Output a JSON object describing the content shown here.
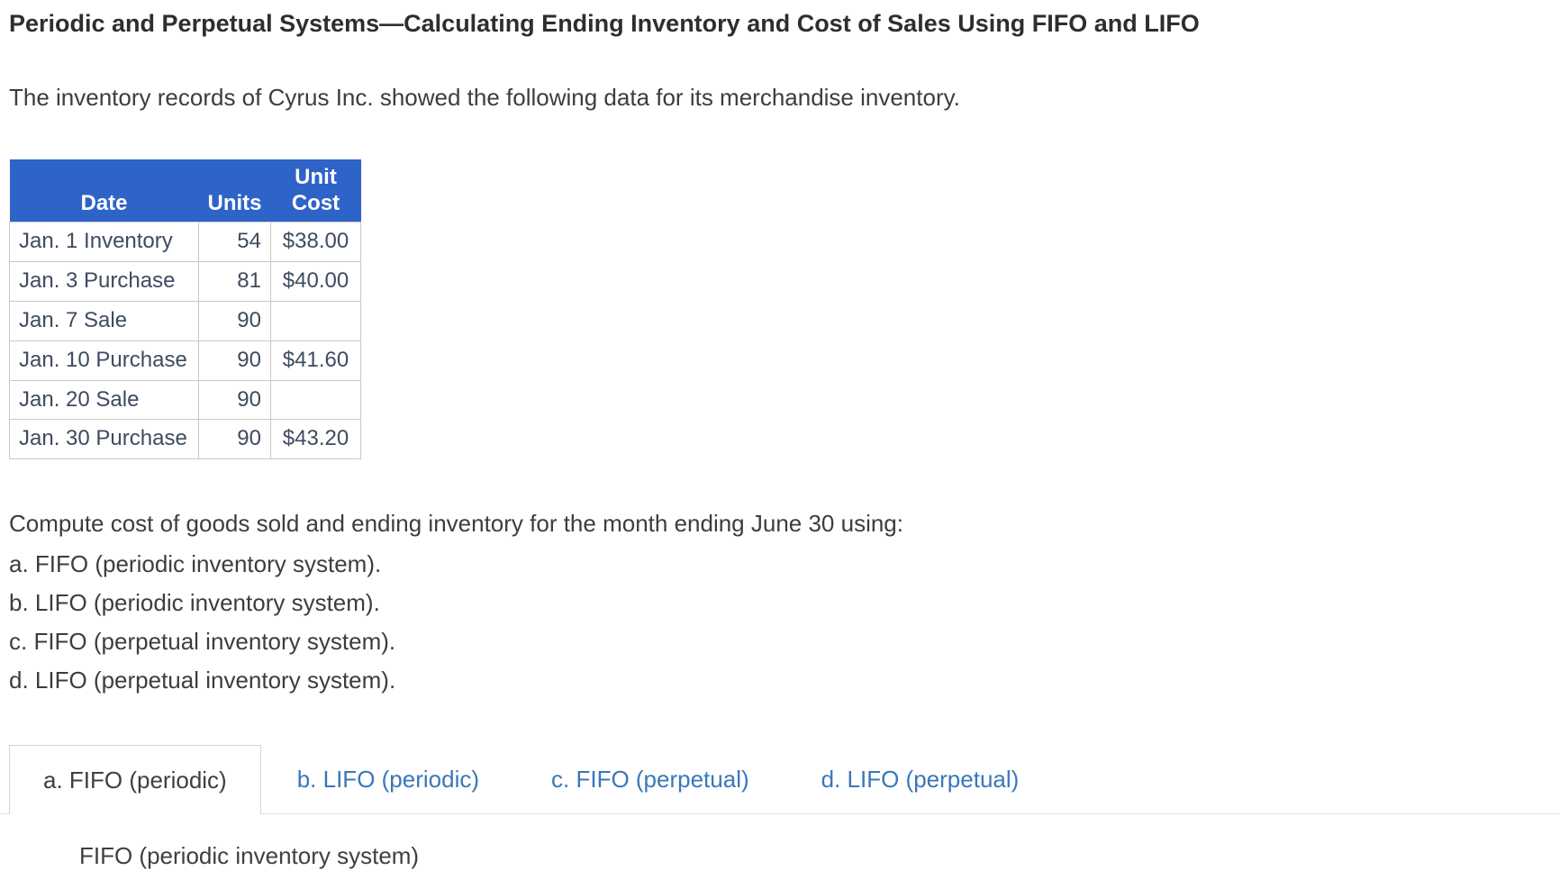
{
  "page": {
    "title": "Periodic and Perpetual Systems—Calculating Ending Inventory and Cost of Sales Using FIFO and LIFO",
    "intro": "The inventory records of Cyrus Inc. showed the following data for its merchandise inventory."
  },
  "inventory_table": {
    "columns": [
      "Date",
      "Units",
      "Unit Cost"
    ],
    "rows": [
      {
        "date": "Jan. 1 Inventory",
        "units": "54",
        "unit_cost": "$38.00"
      },
      {
        "date": "Jan. 3 Purchase",
        "units": "81",
        "unit_cost": "$40.00"
      },
      {
        "date": "Jan. 7 Sale",
        "units": "90",
        "unit_cost": ""
      },
      {
        "date": "Jan. 10 Purchase",
        "units": "90",
        "unit_cost": "$41.60"
      },
      {
        "date": "Jan. 20 Sale",
        "units": "90",
        "unit_cost": ""
      },
      {
        "date": "Jan. 30 Purchase",
        "units": "90",
        "unit_cost": "$43.20"
      }
    ],
    "colors": {
      "header_bg": "#2e63c8",
      "header_text": "#ffffff",
      "body_text": "#3e4b61",
      "border": "#c9c9c9"
    }
  },
  "instructions": {
    "lead": "Compute cost of goods sold and ending inventory for the month ending June 30 using:",
    "items": [
      "a. FIFO (periodic inventory system).",
      "b. LIFO (periodic inventory system).",
      "c. FIFO (perpetual inventory system).",
      "d. LIFO (perpetual inventory system)."
    ]
  },
  "tabs": {
    "active_index": 0,
    "items": [
      {
        "label": "a. FIFO (periodic)"
      },
      {
        "label": "b. LIFO (periodic)"
      },
      {
        "label": "c. FIFO (perpetual)"
      },
      {
        "label": "d. LIFO (perpetual)"
      }
    ],
    "link_color": "#3a77b9"
  },
  "tab_content": {
    "partial_heading": "FIFO (periodic inventory system)"
  }
}
